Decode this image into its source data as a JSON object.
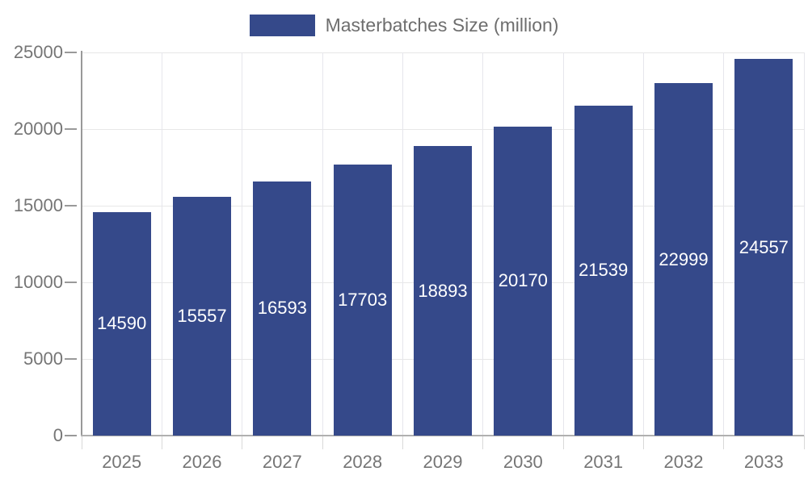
{
  "chart_data": {
    "type": "bar",
    "title": "Masterbatches Size (million)",
    "legend": {
      "label": "Masterbatches Size (million)",
      "position": "top-center"
    },
    "categories": [
      "2025",
      "2026",
      "2027",
      "2028",
      "2029",
      "2030",
      "2031",
      "2032",
      "2033"
    ],
    "series": [
      {
        "name": "Masterbatches Size (million)",
        "values": [
          14590,
          15557,
          16593,
          17703,
          18893,
          20170,
          21539,
          22999,
          24557
        ]
      }
    ],
    "xlabel": "",
    "ylabel": "",
    "ylim": [
      0,
      25000
    ],
    "yticks": [
      0,
      5000,
      10000,
      15000,
      20000,
      25000
    ],
    "grid": true,
    "colors": {
      "bar": "#35498a",
      "bar_label_text": "#ffffff",
      "axis_text": "#757575",
      "legend_text": "#6e6e6e"
    }
  }
}
